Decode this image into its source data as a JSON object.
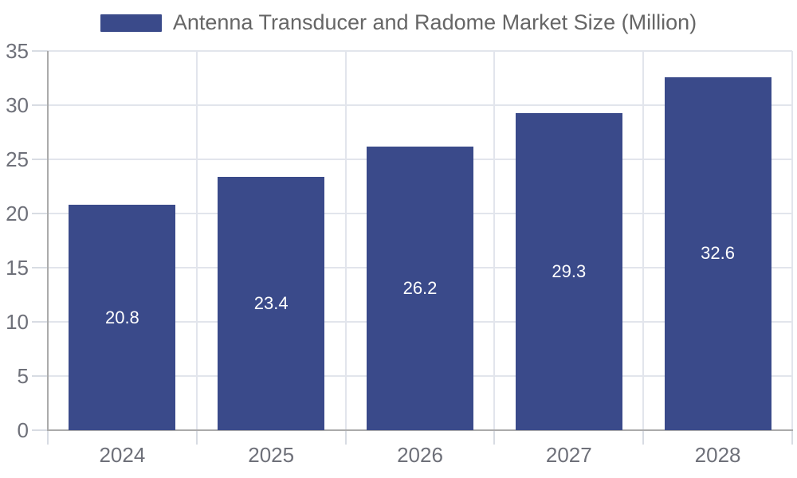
{
  "chart_data": {
    "type": "bar",
    "title": "Antenna Transducer and Radome Market Size (Million)",
    "legend": [
      "Antenna Transducer and Radome Market Size (Million)"
    ],
    "legend_position": "top",
    "categories": [
      "2024",
      "2025",
      "2026",
      "2027",
      "2028"
    ],
    "series": [
      {
        "name": "Antenna Transducer and Radome Market Size (Million)",
        "values": [
          20.8,
          23.4,
          26.2,
          29.3,
          32.6
        ]
      }
    ],
    "data_labels": [
      "20.8",
      "23.4",
      "26.2",
      "29.3",
      "32.6"
    ],
    "xlabel": "",
    "ylabel": "",
    "ylim": [
      0,
      35
    ],
    "yticks": [
      0,
      5,
      10,
      15,
      20,
      25,
      30,
      35
    ],
    "grid": true
  },
  "colors": {
    "bar": "#3A4A8A",
    "title_text": "#666666",
    "axis_label_text": "#6E7079",
    "gridline": "#E2E5EC",
    "tick": "#D8DCE3",
    "axis_line": "#ABABAB",
    "data_label_text": "#FFFFFF",
    "background": "#FFFFFF"
  }
}
